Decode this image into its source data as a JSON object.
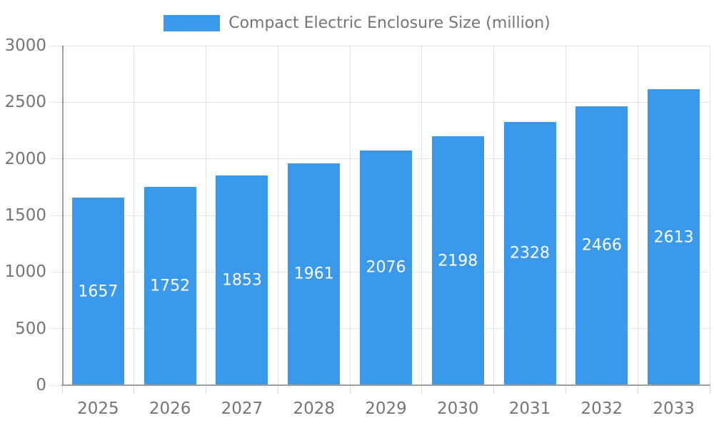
{
  "chart_data": {
    "type": "bar",
    "title": "",
    "legend_label": "Compact Electric Enclosure Size (million)",
    "legend_position": "top",
    "categories": [
      "2025",
      "2026",
      "2027",
      "2028",
      "2029",
      "2030",
      "2031",
      "2032",
      "2033"
    ],
    "values": [
      1657,
      1752,
      1853,
      1961,
      2076,
      2198,
      2328,
      2466,
      2613
    ],
    "xlabel": "",
    "ylabel": "",
    "ylim": [
      0,
      3000
    ],
    "yticks": [
      0,
      500,
      1000,
      1500,
      2000,
      2500,
      3000
    ],
    "grid": true,
    "value_labels": "inside-center",
    "colors": {
      "bar": "#3b99ec",
      "axis_text": "#757575",
      "value_label": "#ffffff",
      "gridline": "#e3e3e3",
      "axis_line": "#9e9e9e",
      "background": "#ffffff"
    }
  }
}
